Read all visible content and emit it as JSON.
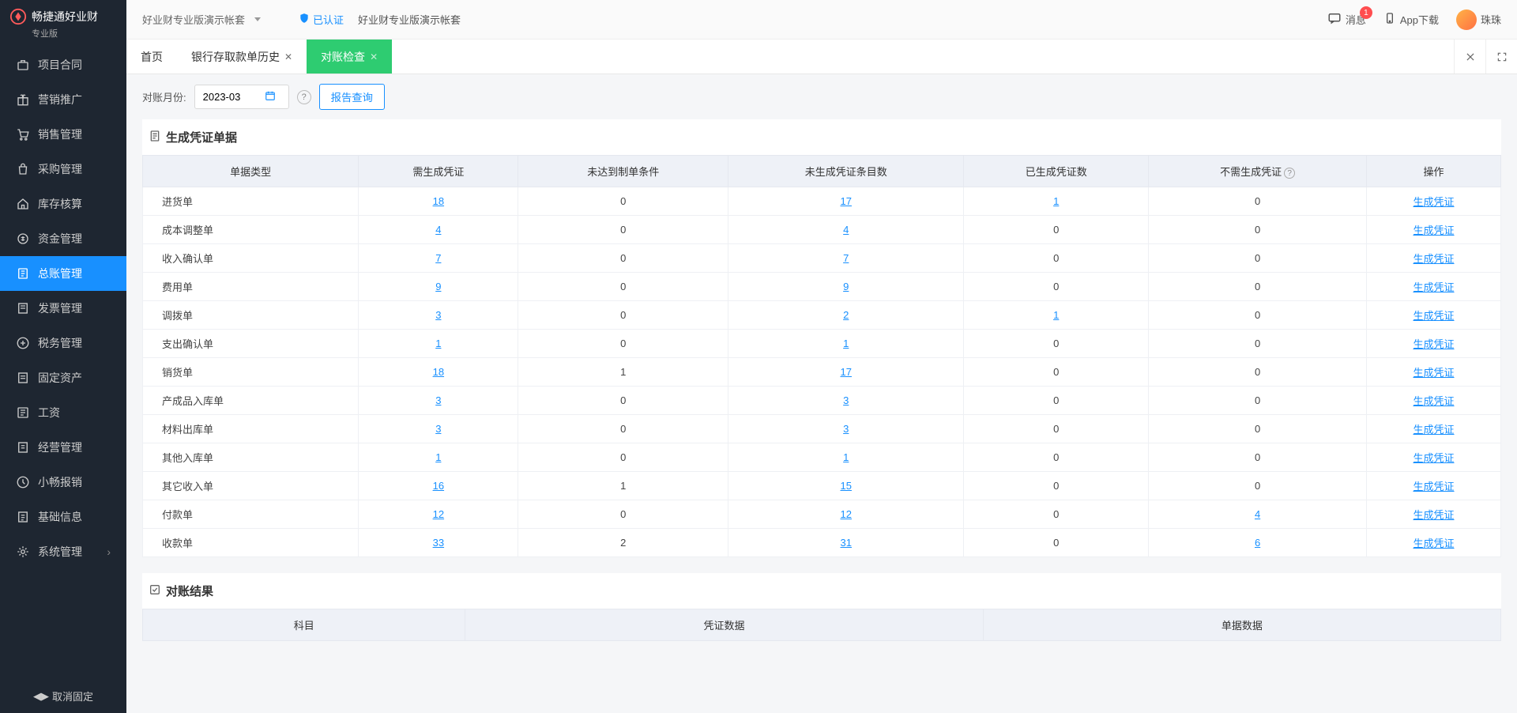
{
  "brand": {
    "name": "畅捷通好业财",
    "sub": "专业版"
  },
  "sidebar": {
    "items": [
      {
        "label": "项目合同",
        "icon": "briefcase"
      },
      {
        "label": "营销推广",
        "icon": "gift"
      },
      {
        "label": "销售管理",
        "icon": "cart"
      },
      {
        "label": "采购管理",
        "icon": "bag"
      },
      {
        "label": "库存核算",
        "icon": "home"
      },
      {
        "label": "资金管理",
        "icon": "coin"
      },
      {
        "label": "总账管理",
        "icon": "ledger",
        "active": true
      },
      {
        "label": "发票管理",
        "icon": "receipt"
      },
      {
        "label": "税务管理",
        "icon": "tax"
      },
      {
        "label": "固定资产",
        "icon": "asset"
      },
      {
        "label": "工资",
        "icon": "salary"
      },
      {
        "label": "经营管理",
        "icon": "manage"
      },
      {
        "label": "小畅报销",
        "icon": "expense"
      },
      {
        "label": "基础信息",
        "icon": "info"
      },
      {
        "label": "系统管理",
        "icon": "system",
        "hasArrow": true
      }
    ],
    "footer": "取消固定"
  },
  "topbar": {
    "accountName": "好业财专业版演示帐套",
    "verifiedLabel": "已认证",
    "accountTitle": "好业财专业版演示帐套",
    "messages": {
      "label": "消息",
      "count": "1"
    },
    "appDownload": "App下载",
    "userName": "珠珠"
  },
  "tabs": {
    "items": [
      {
        "label": "首页",
        "closable": false
      },
      {
        "label": "银行存取款单历史",
        "closable": true
      },
      {
        "label": "对账检查",
        "closable": true,
        "active": true
      }
    ]
  },
  "filter": {
    "monthLabel": "对账月份:",
    "monthValue": "2023-03",
    "reportQuery": "报告查询"
  },
  "voucherSection": {
    "title": "生成凭证单据",
    "columns": [
      "单据类型",
      "需生成凭证",
      "未达到制单条件",
      "未生成凭证条目数",
      "已生成凭证数",
      "不需生成凭证",
      "操作"
    ],
    "helpColIndex": 5,
    "actionLabel": "生成凭证",
    "rows": [
      {
        "type": "进货单",
        "need": "18",
        "notReady": "0",
        "notGen": "17",
        "gen": "1",
        "noNeed": "0"
      },
      {
        "type": "成本调整单",
        "need": "4",
        "notReady": "0",
        "notGen": "4",
        "gen": "0",
        "noNeed": "0"
      },
      {
        "type": "收入确认单",
        "need": "7",
        "notReady": "0",
        "notGen": "7",
        "gen": "0",
        "noNeed": "0"
      },
      {
        "type": "费用单",
        "need": "9",
        "notReady": "0",
        "notGen": "9",
        "gen": "0",
        "noNeed": "0"
      },
      {
        "type": "调拨单",
        "need": "3",
        "notReady": "0",
        "notGen": "2",
        "gen": "1",
        "noNeed": "0"
      },
      {
        "type": "支出确认单",
        "need": "1",
        "notReady": "0",
        "notGen": "1",
        "gen": "0",
        "noNeed": "0"
      },
      {
        "type": "销货单",
        "need": "18",
        "notReady": "1",
        "notGen": "17",
        "gen": "0",
        "noNeed": "0"
      },
      {
        "type": "产成品入库单",
        "need": "3",
        "notReady": "0",
        "notGen": "3",
        "gen": "0",
        "noNeed": "0"
      },
      {
        "type": "材料出库单",
        "need": "3",
        "notReady": "0",
        "notGen": "3",
        "gen": "0",
        "noNeed": "0"
      },
      {
        "type": "其他入库单",
        "need": "1",
        "notReady": "0",
        "notGen": "1",
        "gen": "0",
        "noNeed": "0"
      },
      {
        "type": "其它收入单",
        "need": "16",
        "notReady": "1",
        "notGen": "15",
        "gen": "0",
        "noNeed": "0"
      },
      {
        "type": "付款单",
        "need": "12",
        "notReady": "0",
        "notGen": "12",
        "gen": "0",
        "noNeed": "4"
      },
      {
        "type": "收款单",
        "need": "33",
        "notReady": "2",
        "notGen": "31",
        "gen": "0",
        "noNeed": "6"
      }
    ],
    "linkCols": {
      "need": true,
      "notGen": true,
      "gen": true,
      "noNeed": true
    }
  },
  "resultSection": {
    "title": "对账结果",
    "headerRow1": [
      "科目",
      "凭证数据",
      "单据数据"
    ],
    "headerRow1Spans": [
      2,
      2,
      3
    ]
  }
}
